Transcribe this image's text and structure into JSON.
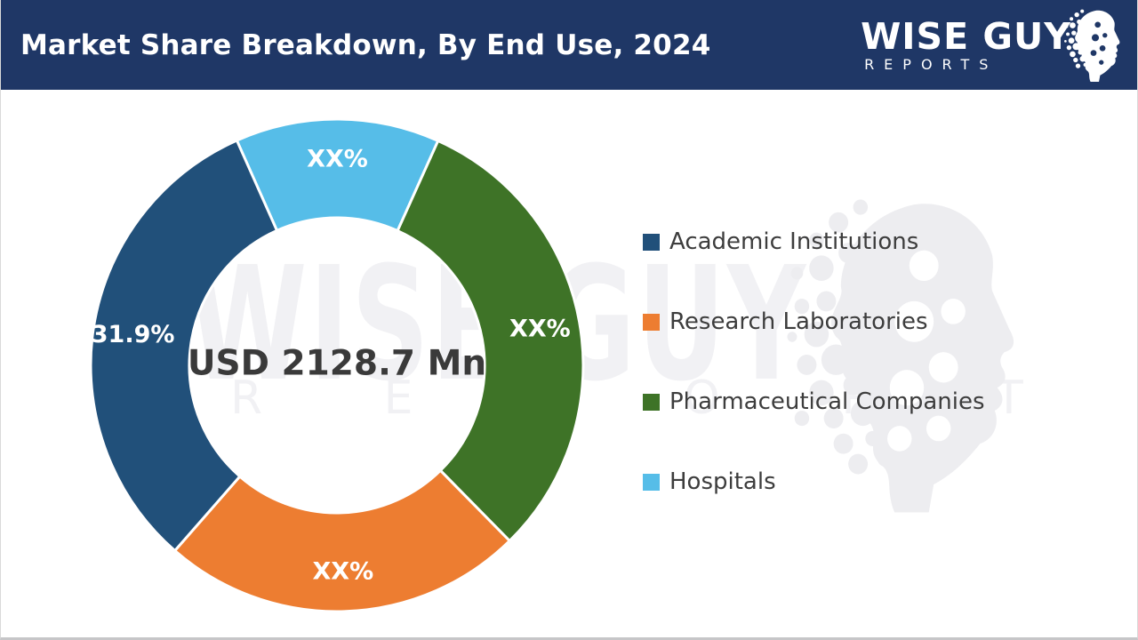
{
  "header": {
    "title": "Market Share Breakdown, By End Use, 2024",
    "brand": {
      "line1": "WISE GUY",
      "line2": "REPORTS"
    }
  },
  "watermark": {
    "line1": "WISE GUY",
    "line2": "R E P O R T S"
  },
  "chart_data": {
    "type": "pie",
    "subtype": "donut",
    "title": "Market Share Breakdown, By End Use, 2024",
    "center_label": "USD 2128.7 Mn",
    "start_angle_deg": -24,
    "unit": "%",
    "slices": [
      {
        "name": "Hospitals",
        "display_label": "XX%",
        "value": 13.4,
        "color": "#56bde8"
      },
      {
        "name": "Pharmaceutical Companies",
        "display_label": "XX%",
        "value": 30.9,
        "color": "#3e7327"
      },
      {
        "name": "Research Laboratories",
        "display_label": "XX%",
        "value": 23.8,
        "color": "#ed7d31"
      },
      {
        "name": "Academic Institutions",
        "display_label": "31.9%",
        "value": 31.9,
        "color": "#21507a"
      }
    ],
    "legend": [
      {
        "label": "Academic Institutions",
        "color": "#21507a"
      },
      {
        "label": "Research Laboratories",
        "color": "#ed7d31"
      },
      {
        "label": "Pharmaceutical Companies",
        "color": "#3e7327"
      },
      {
        "label": "Hospitals",
        "color": "#56bde8"
      }
    ],
    "legend_position": "right",
    "labels_on_slices": true
  }
}
